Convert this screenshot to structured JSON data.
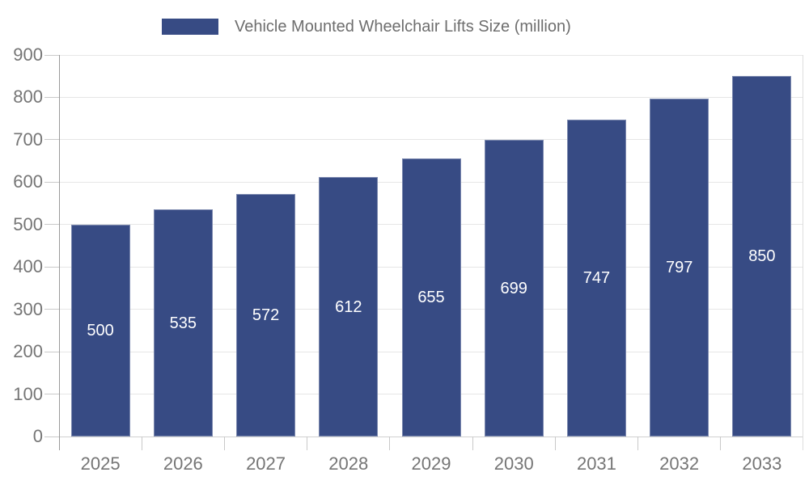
{
  "legend": {
    "label": "Vehicle Mounted Wheelchair Lifts Size (million)"
  },
  "chart_data": {
    "type": "bar",
    "title": "Vehicle Mounted Wheelchair Lifts Size (million)",
    "categories": [
      "2025",
      "2026",
      "2027",
      "2028",
      "2029",
      "2030",
      "2031",
      "2032",
      "2033"
    ],
    "values": [
      500,
      535,
      572,
      612,
      655,
      699,
      747,
      797,
      850
    ],
    "xlabel": "",
    "ylabel": "",
    "ylim": [
      0,
      900
    ],
    "ytick_step": 100,
    "grid": true,
    "legend_position": "top",
    "value_labels": "inside-center",
    "colors": {
      "bar": "#374b84",
      "value_label": "#ffffff",
      "axis_text": "#757575",
      "legend_text": "#6e6e6e",
      "gridline": "#e6e6e6",
      "baseline": "#d0d0d0",
      "tick": "#c9c9c9",
      "y_axis_line": "#9a9a9a",
      "plot_right_border": "#dddddd",
      "background": "#ffffff"
    }
  }
}
